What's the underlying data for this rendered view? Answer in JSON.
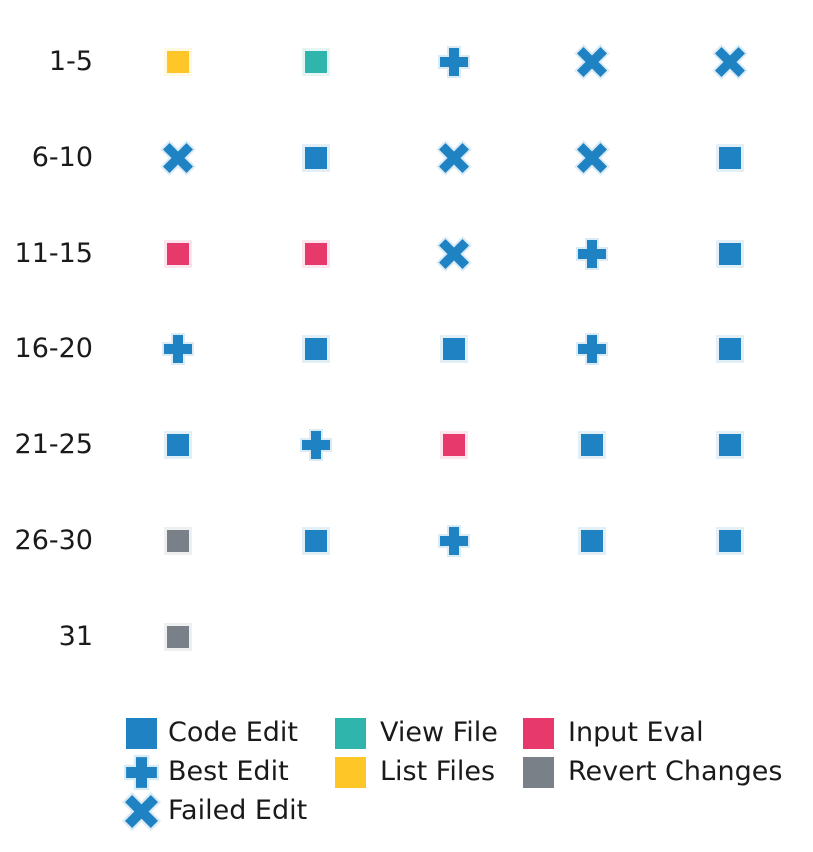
{
  "chart_data": {
    "type": "scatter",
    "title": "",
    "description": "Grid of agent action types per step range; rows are step ranges (5 steps each), columns are the individual steps within the range.",
    "grid": {
      "columns_per_row": 5,
      "total_points": 31
    },
    "rows": [
      {
        "label": "1-5",
        "actions": [
          "List Files",
          "View File",
          "Best Edit",
          "Failed Edit",
          "Failed Edit"
        ]
      },
      {
        "label": "6-10",
        "actions": [
          "Failed Edit",
          "Code Edit",
          "Failed Edit",
          "Failed Edit",
          "Code Edit"
        ]
      },
      {
        "label": "11-15",
        "actions": [
          "Input Eval",
          "Input Eval",
          "Failed Edit",
          "Best Edit",
          "Code Edit"
        ]
      },
      {
        "label": "16-20",
        "actions": [
          "Best Edit",
          "Code Edit",
          "Code Edit",
          "Best Edit",
          "Code Edit"
        ]
      },
      {
        "label": "21-25",
        "actions": [
          "Code Edit",
          "Best Edit",
          "Input Eval",
          "Code Edit",
          "Code Edit"
        ]
      },
      {
        "label": "26-30",
        "actions": [
          "Revert Changes",
          "Code Edit",
          "Best Edit",
          "Code Edit",
          "Code Edit"
        ]
      },
      {
        "label": "31",
        "actions": [
          "Revert Changes"
        ]
      }
    ],
    "markers": {
      "Code Edit": {
        "shape": "square",
        "color": "#1f83c3"
      },
      "Best Edit": {
        "shape": "plus",
        "color": "#1f83c3"
      },
      "Failed Edit": {
        "shape": "x",
        "color": "#1f83c3"
      },
      "View File": {
        "shape": "square",
        "color": "#30b5ac"
      },
      "List Files": {
        "shape": "square",
        "color": "#ffc628"
      },
      "Input Eval": {
        "shape": "square",
        "color": "#e8396d"
      },
      "Revert Changes": {
        "shape": "square",
        "color": "#7a8088"
      }
    },
    "legend": {
      "position": "bottom",
      "columns": 3,
      "items": [
        {
          "label": "Code Edit",
          "column": 0,
          "row": 0
        },
        {
          "label": "Best Edit",
          "column": 0,
          "row": 1
        },
        {
          "label": "Failed Edit",
          "column": 0,
          "row": 2
        },
        {
          "label": "View File",
          "column": 1,
          "row": 0
        },
        {
          "label": "List Files",
          "column": 1,
          "row": 1
        },
        {
          "label": "Input Eval",
          "column": 2,
          "row": 0
        },
        {
          "label": "Revert Changes",
          "column": 2,
          "row": 1
        }
      ]
    },
    "colors": {
      "blue": "#1f83c3",
      "teal": "#30b5ac",
      "yellow": "#ffc628",
      "pink": "#e8396d",
      "gray": "#7a8088",
      "text": "#1a1a1a",
      "background": "#ffffff"
    }
  }
}
